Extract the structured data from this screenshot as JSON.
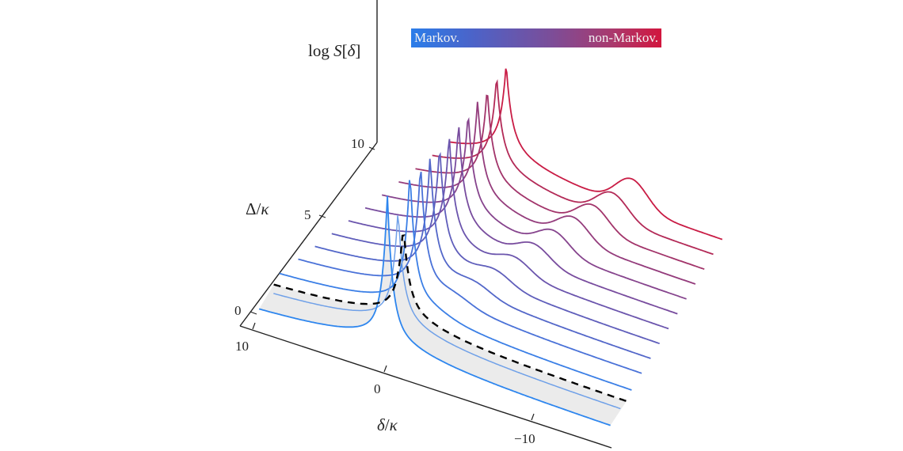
{
  "chart_data": {
    "type": "line",
    "subtype": "3d-waterfall",
    "title": "",
    "zlabel": "log S[δ]",
    "ylabel": "Δ/κ",
    "xlabel": "δ/κ",
    "x_ticks": [
      10,
      0,
      -10
    ],
    "y_ticks": [
      0,
      5,
      10
    ],
    "x_range": [
      12,
      -16
    ],
    "y_range": [
      0,
      10
    ],
    "legend": {
      "left_label": "Markov.",
      "right_label": "non-Markov.",
      "gradient_colors": [
        "#2b7de9",
        "#d2163e"
      ]
    },
    "series_count": 13,
    "series": [
      {
        "delta": 0.0,
        "color": "#2e86ee",
        "peak_height": 222,
        "shoulder": 0
      },
      {
        "delta": 0.9,
        "color": "#6fa0e8",
        "peak_height": 0,
        "shoulder": 0,
        "note": "lighter blue, inside shaded band"
      },
      {
        "delta": 1.9,
        "color": "#3b7fe6",
        "peak_height": 195,
        "shoulder": 0.1
      },
      {
        "delta": 2.8,
        "color": "#4a72d8",
        "peak_height": 175,
        "shoulder": 0.2
      },
      {
        "delta": 3.6,
        "color": "#5367c9",
        "peak_height": 160,
        "shoulder": 0.3
      },
      {
        "delta": 4.4,
        "color": "#5f5ebb",
        "peak_height": 150,
        "shoulder": 0.4
      },
      {
        "delta": 5.2,
        "color": "#6b55ad",
        "peak_height": 140,
        "shoulder": 0.5
      },
      {
        "delta": 6.0,
        "color": "#784c9e",
        "peak_height": 132,
        "shoulder": 0.6
      },
      {
        "delta": 6.8,
        "color": "#86448d",
        "peak_height": 124,
        "shoulder": 0.7
      },
      {
        "delta": 7.6,
        "color": "#943c7c",
        "peak_height": 118,
        "shoulder": 0.8
      },
      {
        "delta": 8.4,
        "color": "#a2346a",
        "peak_height": 112,
        "shoulder": 0.85
      },
      {
        "delta": 9.2,
        "color": "#b32a57",
        "peak_height": 106,
        "shoulder": 0.9
      },
      {
        "delta": 10.0,
        "color": "#c91c45",
        "peak_height": 100,
        "shoulder": 1.0
      }
    ],
    "annotations": [
      "dashed black boundary curve near Δ/κ≈1.3",
      "grey shaded region between Δ/κ=0 curve and dashed boundary"
    ],
    "grid": false
  },
  "axes": {
    "z_label_main": "log ",
    "z_label_S": "S",
    "z_label_rest": "[",
    "z_label_delta": "δ",
    "z_label_close": "]",
    "y_label_D": "Δ",
    "y_label_slash": "/",
    "y_label_k": "κ",
    "x_label_d": "δ",
    "x_label_slash": "/",
    "x_label_k": "κ",
    "y_tick_0": "0",
    "y_tick_5": "5",
    "y_tick_10": "10",
    "x_tick_10": "10",
    "x_tick_0": "0",
    "x_tick_m10": "−10"
  },
  "legend": {
    "left": "Markov.",
    "right": "non-Markov."
  }
}
